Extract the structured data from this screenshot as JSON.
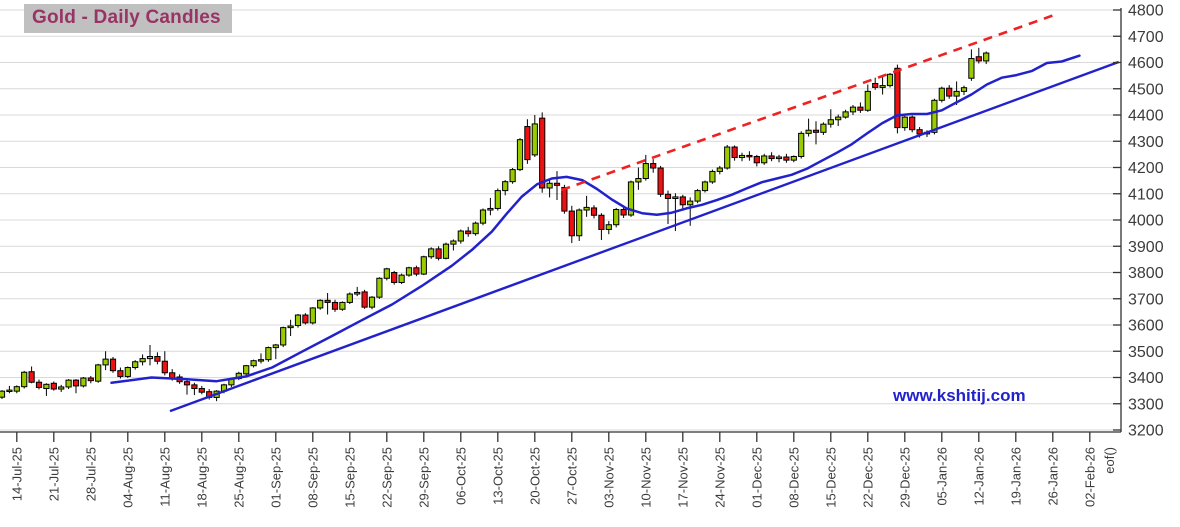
{
  "header": {
    "title": "Gold - Daily Candles"
  },
  "watermark_text": "www.kshitij.com",
  "chart_data": {
    "type": "candlestick",
    "title": "Gold - Daily Candles",
    "instrument": "Gold",
    "interval": "Daily",
    "ylim": [
      3200,
      4800
    ],
    "y_ticks": [
      3200,
      3300,
      3400,
      3500,
      3600,
      3700,
      3800,
      3900,
      4000,
      4100,
      4200,
      4300,
      4400,
      4500,
      4600,
      4700,
      4800
    ],
    "x_tick_labels": [
      "14-Jul-25",
      "21-Jul-25",
      "28-Jul-25",
      "04-Aug-25",
      "11-Aug-25",
      "18-Aug-25",
      "25-Aug-25",
      "01-Sep-25",
      "08-Sep-25",
      "15-Sep-25",
      "22-Sep-25",
      "29-Sep-25",
      "06-Oct-25",
      "13-Oct-25",
      "20-Oct-25",
      "27-Oct-25",
      "03-Nov-25",
      "10-Nov-25",
      "17-Nov-25",
      "24-Nov-25",
      "01-Dec-25",
      "08-Dec-25",
      "15-Dec-25",
      "22-Dec-25",
      "29-Dec-25",
      "05-Jan-26",
      "12-Jan-26",
      "19-Jan-26",
      "26-Jan-26",
      "02-Feb-26"
    ],
    "x_axis_end_label": "eof()",
    "grid": "horizontal",
    "legend": "none",
    "colors": {
      "up": "#99cc00",
      "down": "#ee1111",
      "candle_outline": "#000000",
      "moving_average": "#2222cc",
      "trendline": "#2222cc",
      "channel": "#ee2222",
      "grid": "#d9d9d9",
      "axis": "#333333",
      "tick_text": "#3c3c3c",
      "title_text": "#993366",
      "title_bg": "#c0c0c0",
      "watermark": "#2222cc"
    },
    "candles_ohlc": [
      [
        "10-Jul-25",
        3325,
        3352,
        3318,
        3348
      ],
      [
        "11-Jul-25",
        3348,
        3368,
        3340,
        3352
      ],
      [
        "14-Jul-25",
        3348,
        3370,
        3340,
        3365
      ],
      [
        "15-Jul-25",
        3365,
        3425,
        3358,
        3420
      ],
      [
        "16-Jul-25",
        3422,
        3442,
        3378,
        3382
      ],
      [
        "17-Jul-25",
        3382,
        3392,
        3355,
        3362
      ],
      [
        "18-Jul-25",
        3358,
        3378,
        3330,
        3374
      ],
      [
        "21-Jul-25",
        3378,
        3385,
        3350,
        3356
      ],
      [
        "22-Jul-25",
        3356,
        3372,
        3345,
        3364
      ],
      [
        "23-Jul-25",
        3364,
        3394,
        3356,
        3390
      ],
      [
        "24-Jul-25",
        3390,
        3394,
        3340,
        3368
      ],
      [
        "25-Jul-25",
        3368,
        3402,
        3362,
        3398
      ],
      [
        "28-Jul-25",
        3398,
        3406,
        3378,
        3388
      ],
      [
        "29-Jul-25",
        3386,
        3452,
        3380,
        3448
      ],
      [
        "30-Jul-25",
        3448,
        3500,
        3428,
        3470
      ],
      [
        "31-Jul-25",
        3470,
        3478,
        3418,
        3426
      ],
      [
        "01-Aug-25",
        3426,
        3438,
        3396,
        3404
      ],
      [
        "04-Aug-25",
        3404,
        3442,
        3398,
        3438
      ],
      [
        "05-Aug-25",
        3438,
        3466,
        3430,
        3460
      ],
      [
        "06-Aug-25",
        3460,
        3488,
        3446,
        3472
      ],
      [
        "07-Aug-25",
        3472,
        3524,
        3446,
        3480
      ],
      [
        "08-Aug-25",
        3480,
        3496,
        3450,
        3462
      ],
      [
        "11-Aug-25",
        3462,
        3500,
        3408,
        3418
      ],
      [
        "12-Aug-25",
        3418,
        3432,
        3388,
        3398
      ],
      [
        "13-Aug-25",
        3402,
        3412,
        3376,
        3384
      ],
      [
        "14-Aug-25",
        3384,
        3396,
        3335,
        3372
      ],
      [
        "15-Aug-25",
        3372,
        3380,
        3333,
        3358
      ],
      [
        "18-Aug-25",
        3358,
        3368,
        3336,
        3344
      ],
      [
        "19-Aug-25",
        3346,
        3356,
        3316,
        3324
      ],
      [
        "20-Aug-25",
        3324,
        3352,
        3310,
        3348
      ],
      [
        "21-Aug-25",
        3348,
        3376,
        3340,
        3372
      ],
      [
        "22-Aug-25",
        3372,
        3400,
        3364,
        3396
      ],
      [
        "25-Aug-25",
        3396,
        3422,
        3390,
        3416
      ],
      [
        "26-Aug-25",
        3414,
        3448,
        3406,
        3445
      ],
      [
        "27-Aug-25",
        3445,
        3468,
        3438,
        3464
      ],
      [
        "28-Aug-25",
        3464,
        3492,
        3454,
        3468
      ],
      [
        "29-Aug-25",
        3468,
        3518,
        3460,
        3514
      ],
      [
        "01-Sep-25",
        3514,
        3528,
        3470,
        3524
      ],
      [
        "02-Sep-25",
        3524,
        3594,
        3516,
        3590
      ],
      [
        "03-Sep-25",
        3590,
        3620,
        3558,
        3596
      ],
      [
        "04-Sep-25",
        3598,
        3642,
        3590,
        3638
      ],
      [
        "05-Sep-25",
        3638,
        3645,
        3602,
        3608
      ],
      [
        "08-Sep-25",
        3608,
        3668,
        3602,
        3665
      ],
      [
        "09-Sep-25",
        3665,
        3698,
        3658,
        3694
      ],
      [
        "10-Sep-25",
        3694,
        3722,
        3640,
        3686
      ],
      [
        "11-Sep-25",
        3686,
        3696,
        3650,
        3660
      ],
      [
        "12-Sep-25",
        3660,
        3690,
        3654,
        3686
      ],
      [
        "15-Sep-25",
        3686,
        3724,
        3680,
        3718
      ],
      [
        "16-Sep-25",
        3718,
        3745,
        3710,
        3724
      ],
      [
        "17-Sep-25",
        3726,
        3734,
        3662,
        3668
      ],
      [
        "18-Sep-25",
        3668,
        3710,
        3660,
        3706
      ],
      [
        "19-Sep-25",
        3706,
        3782,
        3700,
        3778
      ],
      [
        "22-Sep-25",
        3778,
        3818,
        3770,
        3814
      ],
      [
        "23-Sep-25",
        3800,
        3806,
        3754,
        3762
      ],
      [
        "24-Sep-25",
        3762,
        3796,
        3756,
        3790
      ],
      [
        "25-Sep-25",
        3790,
        3822,
        3784,
        3818
      ],
      [
        "26-Sep-25",
        3818,
        3826,
        3786,
        3794
      ],
      [
        "29-Sep-25",
        3794,
        3864,
        3790,
        3860
      ],
      [
        "30-Sep-25",
        3860,
        3896,
        3852,
        3890
      ],
      [
        "01-Oct-25",
        3890,
        3900,
        3846,
        3854
      ],
      [
        "02-Oct-25",
        3854,
        3914,
        3850,
        3908
      ],
      [
        "03-Oct-25",
        3908,
        3926,
        3884,
        3920
      ],
      [
        "06-Oct-25",
        3920,
        3964,
        3910,
        3958
      ],
      [
        "07-Oct-25",
        3958,
        3974,
        3936,
        3948
      ],
      [
        "08-Oct-25",
        3948,
        3994,
        3940,
        3988
      ],
      [
        "09-Oct-25",
        3988,
        4044,
        3980,
        4038
      ],
      [
        "10-Oct-25",
        4038,
        4084,
        4018,
        4044
      ],
      [
        "13-Oct-25",
        4044,
        4120,
        4036,
        4112
      ],
      [
        "14-Oct-25",
        4112,
        4152,
        4094,
        4146
      ],
      [
        "15-Oct-25",
        4146,
        4198,
        4138,
        4192
      ],
      [
        "16-Oct-25",
        4192,
        4312,
        4186,
        4306
      ],
      [
        "17-Oct-25",
        4356,
        4384,
        4214,
        4230
      ],
      [
        "20-Oct-25",
        4248,
        4400,
        4240,
        4366
      ],
      [
        "21-Oct-25",
        4388,
        4410,
        4104,
        4122
      ],
      [
        "22-Oct-25",
        4122,
        4158,
        4086,
        4140
      ],
      [
        "23-Oct-25",
        4140,
        4186,
        4076,
        4132
      ],
      [
        "24-Oct-25",
        4124,
        4134,
        4024,
        4034
      ],
      [
        "27-Oct-25",
        4034,
        4054,
        3912,
        3940
      ],
      [
        "28-Oct-25",
        3940,
        4044,
        3920,
        4038
      ],
      [
        "29-Oct-25",
        4038,
        4092,
        4012,
        4048
      ],
      [
        "30-Oct-25",
        4046,
        4056,
        4006,
        4018
      ],
      [
        "31-Oct-25",
        4018,
        4026,
        3924,
        3964
      ],
      [
        "03-Nov-25",
        3964,
        3996,
        3946,
        3982
      ],
      [
        "04-Nov-25",
        3982,
        4046,
        3972,
        4040
      ],
      [
        "05-Nov-25",
        4040,
        4050,
        4008,
        4019
      ],
      [
        "06-Nov-25",
        4019,
        4150,
        4012,
        4145
      ],
      [
        "07-Nov-25",
        4145,
        4200,
        4115,
        4158
      ],
      [
        "10-Nov-25",
        4158,
        4248,
        4150,
        4215
      ],
      [
        "11-Nov-25",
        4215,
        4232,
        4180,
        4198
      ],
      [
        "12-Nov-25",
        4198,
        4206,
        4088,
        4098
      ],
      [
        "13-Nov-25",
        4098,
        4112,
        3985,
        4082
      ],
      [
        "14-Nov-25",
        4082,
        4102,
        3958,
        4088
      ],
      [
        "17-Nov-25",
        4088,
        4096,
        4038,
        4058
      ],
      [
        "18-Nov-25",
        4058,
        4086,
        3978,
        4072
      ],
      [
        "19-Nov-25",
        4072,
        4118,
        4064,
        4112
      ],
      [
        "20-Nov-25",
        4112,
        4150,
        4105,
        4145
      ],
      [
        "21-Nov-25",
        4145,
        4192,
        4138,
        4185
      ],
      [
        "24-Nov-25",
        4185,
        4206,
        4174,
        4198
      ],
      [
        "25-Nov-25",
        4198,
        4286,
        4192,
        4278
      ],
      [
        "26-Nov-25",
        4278,
        4284,
        4226,
        4238
      ],
      [
        "27-Nov-25",
        4238,
        4256,
        4224,
        4246
      ],
      [
        "28-Nov-25",
        4246,
        4262,
        4226,
        4242
      ],
      [
        "01-Dec-25",
        4242,
        4248,
        4204,
        4218
      ],
      [
        "02-Dec-25",
        4218,
        4252,
        4210,
        4244
      ],
      [
        "03-Dec-25",
        4244,
        4258,
        4224,
        4234
      ],
      [
        "04-Dec-25",
        4234,
        4248,
        4220,
        4240
      ],
      [
        "05-Dec-25",
        4240,
        4252,
        4218,
        4228
      ],
      [
        "08-Dec-25",
        4228,
        4246,
        4220,
        4242
      ],
      [
        "09-Dec-25",
        4242,
        4338,
        4234,
        4330
      ],
      [
        "10-Dec-25",
        4330,
        4386,
        4318,
        4342
      ],
      [
        "11-Dec-25",
        4342,
        4376,
        4288,
        4334
      ],
      [
        "12-Dec-25",
        4334,
        4372,
        4324,
        4365
      ],
      [
        "15-Dec-25",
        4365,
        4422,
        4352,
        4382
      ],
      [
        "16-Dec-25",
        4382,
        4402,
        4358,
        4392
      ],
      [
        "17-Dec-25",
        4392,
        4420,
        4386,
        4412
      ],
      [
        "18-Dec-25",
        4412,
        4438,
        4400,
        4430
      ],
      [
        "19-Dec-25",
        4430,
        4448,
        4408,
        4418
      ],
      [
        "22-Dec-25",
        4418,
        4516,
        4412,
        4490
      ],
      [
        "23-Dec-25",
        4520,
        4542,
        4496,
        4505
      ],
      [
        "24-Dec-25",
        4505,
        4552,
        4478,
        4512
      ],
      [
        "25-Dec-25",
        4512,
        4560,
        4505,
        4555
      ],
      [
        "26-Dec-25",
        4578,
        4592,
        4330,
        4352
      ],
      [
        "29-Dec-25",
        4352,
        4396,
        4340,
        4392
      ],
      [
        "30-Dec-25",
        4392,
        4398,
        4334,
        4344
      ],
      [
        "31-Dec-25",
        4344,
        4354,
        4314,
        4328
      ],
      [
        "01-Jan-26",
        4328,
        4342,
        4316,
        4334
      ],
      [
        "02-Jan-26",
        4334,
        4462,
        4326,
        4456
      ],
      [
        "05-Jan-26",
        4456,
        4508,
        4448,
        4502
      ],
      [
        "06-Jan-26",
        4502,
        4514,
        4462,
        4472
      ],
      [
        "07-Jan-26",
        4472,
        4528,
        4438,
        4490
      ],
      [
        "08-Jan-26",
        4490,
        4512,
        4476,
        4504
      ],
      [
        "09-Jan-26",
        4540,
        4650,
        4530,
        4615
      ],
      [
        "12-Jan-26",
        4622,
        4656,
        4596,
        4606
      ],
      [
        "13-Jan-26",
        4606,
        4642,
        4594,
        4636
      ]
    ],
    "moving_average_points": [
      [
        14.8,
        3380
      ],
      [
        20.2,
        3400
      ],
      [
        25,
        3393
      ],
      [
        29,
        3386
      ],
      [
        33,
        3404
      ],
      [
        36.5,
        3438
      ],
      [
        40.5,
        3498
      ],
      [
        44.6,
        3558
      ],
      [
        48.6,
        3618
      ],
      [
        52.7,
        3678
      ],
      [
        56.7,
        3748
      ],
      [
        60.8,
        3826
      ],
      [
        63.5,
        3886
      ],
      [
        66.2,
        3956
      ],
      [
        68.2,
        4024
      ],
      [
        70.2,
        4088
      ],
      [
        72.3,
        4136
      ],
      [
        74.3,
        4158
      ],
      [
        76.3,
        4164
      ],
      [
        78.4,
        4152
      ],
      [
        80.4,
        4118
      ],
      [
        82.4,
        4078
      ],
      [
        84.4,
        4044
      ],
      [
        86.5,
        4026
      ],
      [
        88.5,
        4020
      ],
      [
        90.5,
        4028
      ],
      [
        92.5,
        4044
      ],
      [
        94.6,
        4058
      ],
      [
        96.6,
        4076
      ],
      [
        98.6,
        4096
      ],
      [
        100.6,
        4120
      ],
      [
        102.7,
        4144
      ],
      [
        104.7,
        4158
      ],
      [
        106.7,
        4172
      ],
      [
        108.8,
        4196
      ],
      [
        110.8,
        4226
      ],
      [
        112.8,
        4256
      ],
      [
        114.8,
        4288
      ],
      [
        116.9,
        4330
      ],
      [
        118.9,
        4368
      ],
      [
        120.9,
        4398
      ],
      [
        122.9,
        4404
      ],
      [
        125,
        4404
      ],
      [
        127,
        4418
      ],
      [
        129,
        4448
      ],
      [
        131,
        4478
      ],
      [
        133.1,
        4516
      ],
      [
        135.1,
        4542
      ],
      [
        137.1,
        4552
      ],
      [
        139.2,
        4568
      ],
      [
        141.2,
        4598
      ],
      [
        143.2,
        4604
      ],
      [
        145.6,
        4626
      ]
    ],
    "support_trendline": {
      "from": [
        22.7,
        3272
      ],
      "to": [
        150.9,
        4602
      ]
    },
    "resistance_channel_line": {
      "style": "dashed",
      "from": [
        75.6,
        4114
      ],
      "to": [
        142.1,
        4780
      ]
    }
  }
}
